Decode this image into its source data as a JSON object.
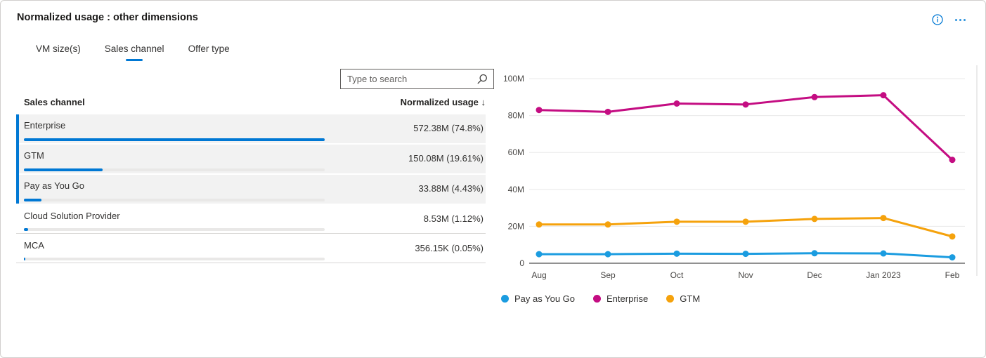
{
  "header": {
    "title": "Normalized usage : other dimensions",
    "icons": {
      "info": "info-circle",
      "more": "ellipsis-horizontal"
    }
  },
  "tabs": {
    "items": [
      "VM size(s)",
      "Sales channel",
      "Offer type"
    ],
    "active": "Sales channel"
  },
  "search": {
    "placeholder": "Type to search",
    "icon": "magnifier"
  },
  "table": {
    "columns": [
      "Sales channel",
      "Normalized usage ↓"
    ],
    "rows": [
      {
        "label": "Enterprise",
        "usage": "572.38M (74.8%)",
        "bar_pct": 100,
        "selected": true
      },
      {
        "label": "GTM",
        "usage": "150.08M (19.61%)",
        "bar_pct": 26.2,
        "selected": true
      },
      {
        "label": "Pay as You Go",
        "usage": "33.88M (4.43%)",
        "bar_pct": 5.9,
        "selected": true
      },
      {
        "label": "Cloud Solution Provider",
        "usage": "8.53M (1.12%)",
        "bar_pct": 1.5,
        "selected": false
      },
      {
        "label": "MCA",
        "usage": "356.15K (0.05%)",
        "bar_pct": 0.3,
        "selected": false
      }
    ]
  },
  "chart_data": {
    "type": "line",
    "categories": [
      "Aug",
      "Sep",
      "Oct",
      "Nov",
      "Dec",
      "Jan 2023",
      "Feb"
    ],
    "series": [
      {
        "name": "Pay as You Go",
        "color": "#1b9ce0",
        "values": [
          4.9,
          4.9,
          5.2,
          5.1,
          5.4,
          5.3,
          3.2
        ]
      },
      {
        "name": "Enterprise",
        "color": "#c40d82",
        "values": [
          83,
          82,
          86.5,
          86,
          90,
          91,
          56
        ]
      },
      {
        "name": "GTM",
        "color": "#f5a20c",
        "values": [
          21,
          21,
          22.5,
          22.5,
          24,
          24.5,
          14.5
        ]
      }
    ],
    "unit": "M",
    "y_ticks": [
      "0",
      "20M",
      "40M",
      "60M",
      "80M",
      "100M"
    ],
    "y_max": 100,
    "ylim": [
      0,
      100
    ],
    "grid": true,
    "legend_position": "bottom"
  },
  "colors": {
    "accent": "#0078d4",
    "row_selected_bg": "#f2f2f2",
    "gridline": "#e8e8e8",
    "series_blue": "#1b9ce0",
    "series_magenta": "#c40d82",
    "series_orange": "#f5a20c"
  }
}
